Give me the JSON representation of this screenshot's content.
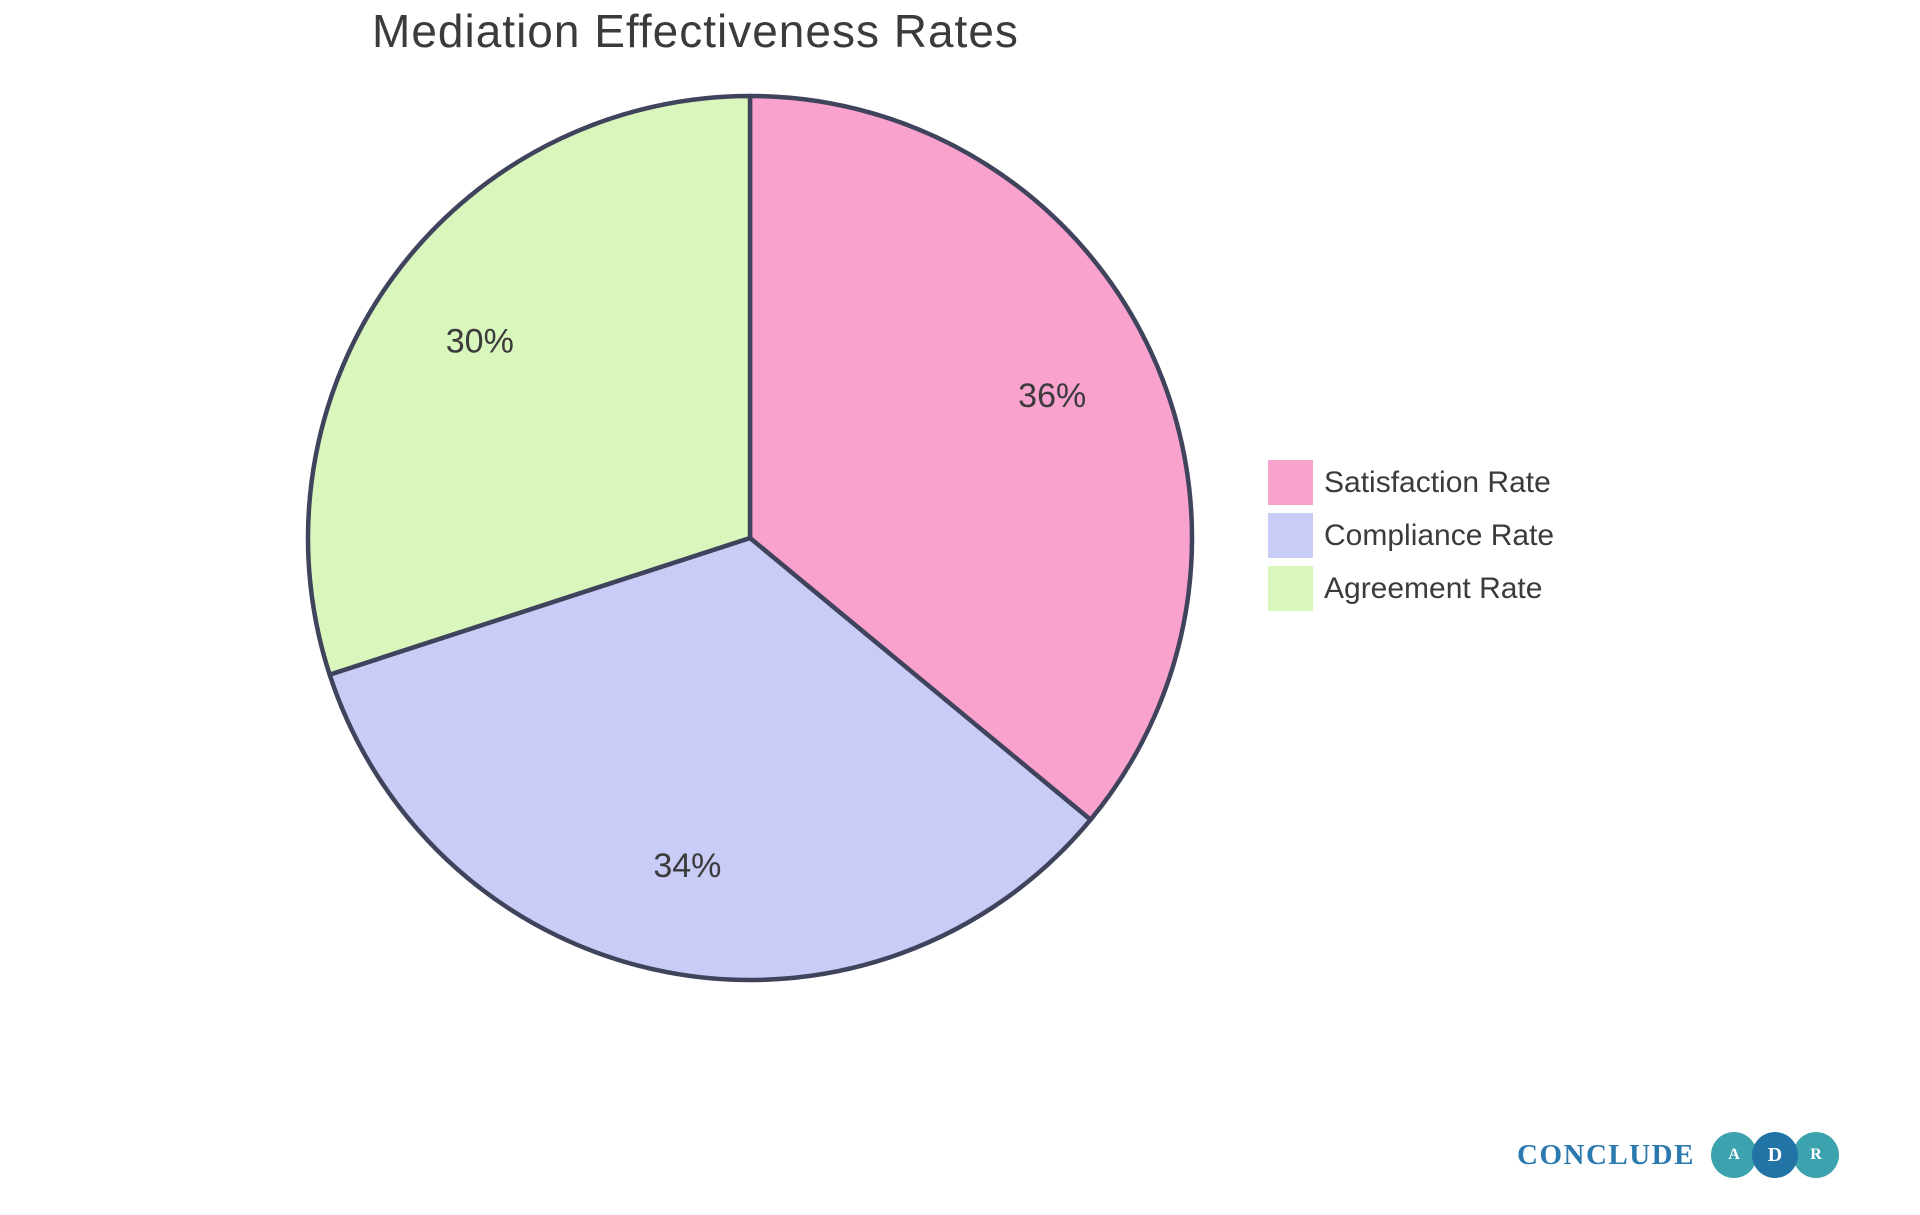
{
  "page": {
    "background": "#ffffff"
  },
  "chart_data": {
    "type": "pie",
    "title": "Mediation Effectiveness Rates",
    "categories": [
      "Satisfaction Rate",
      "Compliance Rate",
      "Agreement Rate"
    ],
    "values": [
      36,
      34,
      30
    ],
    "slices": [
      {
        "label": "Satisfaction Rate",
        "value": 36,
        "percent_label": "36%",
        "color": "#f9a2ce"
      },
      {
        "label": "Compliance Rate",
        "value": 34,
        "percent_label": "34%",
        "color": "#c8ccf6"
      },
      {
        "label": "Agreement Rate",
        "value": 30,
        "percent_label": "30%",
        "color": "#d9f6bc"
      }
    ],
    "start_angle_deg": -90,
    "direction": "clockwise",
    "border_color": "#3f435c",
    "border_width": 4.5,
    "label_color": "#3b3b3b",
    "title_color": "#3b3b3b",
    "legend_position": "right",
    "grid": false
  },
  "branding": {
    "wordmark": "CONCLUDE",
    "wordmark_color": "#2b79ae",
    "badges": [
      {
        "letter": "A",
        "color": "#3ba2ae"
      },
      {
        "letter": "D",
        "color": "#2273a6"
      },
      {
        "letter": "R",
        "color": "#3ba2ae"
      }
    ]
  }
}
